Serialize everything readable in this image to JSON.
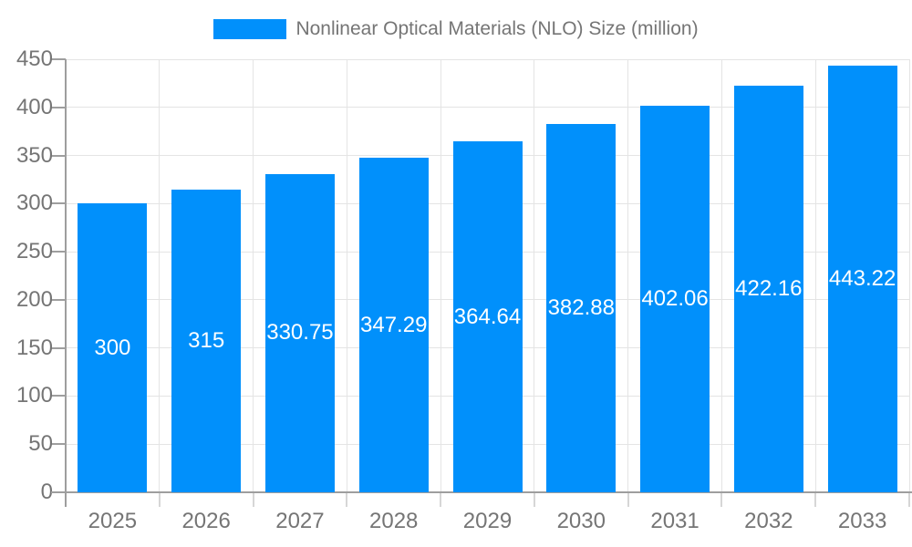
{
  "chart_data": {
    "type": "bar",
    "title": "Nonlinear Optical Materials (NLO) Size (million)",
    "legend": "Nonlinear Optical Materials (NLO) Size (million)",
    "legend_position": "top",
    "categories": [
      "2025",
      "2026",
      "2027",
      "2028",
      "2029",
      "2030",
      "2031",
      "2032",
      "2033"
    ],
    "values": [
      300,
      315,
      330.75,
      347.29,
      364.64,
      382.88,
      402.06,
      422.16,
      443.22
    ],
    "value_labels": [
      "300",
      "315",
      "330.75",
      "347.29",
      "364.64",
      "382.88",
      "402.06",
      "422.16",
      "443.22"
    ],
    "xlabel": "",
    "ylabel": "",
    "ylim": [
      0,
      450
    ],
    "yticks": [
      0,
      50,
      100,
      150,
      200,
      250,
      300,
      350,
      400,
      450
    ],
    "grid": true,
    "colors": {
      "bar": "#0190fb",
      "bar_label_text": "#ffffff",
      "axis_text": "#757575",
      "axis_line": "#9e9e9e",
      "gridline": "#e4e4e4",
      "category_tick": "#d6d6d6"
    }
  }
}
